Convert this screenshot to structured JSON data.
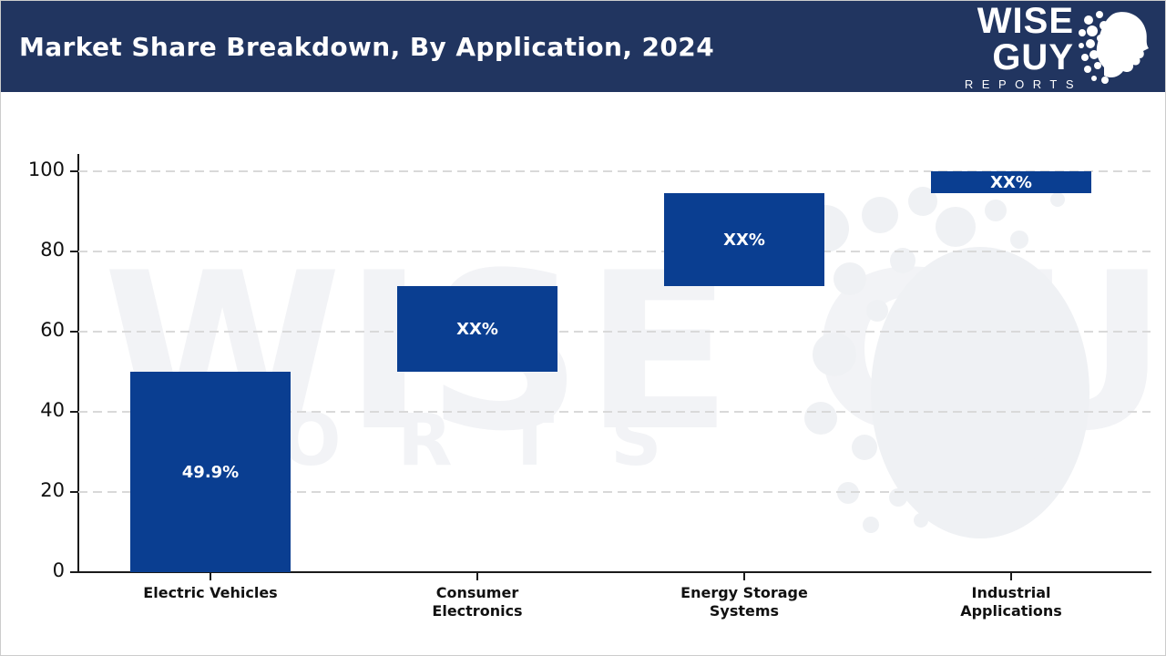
{
  "header": {
    "title": "Market Share Breakdown, By Application, 2024",
    "logo": {
      "line1": "WISE GUY",
      "line2": "REPORTS"
    }
  },
  "watermark": {
    "line1": "WISE GUY",
    "line2": "PORTS"
  },
  "chart_data": {
    "type": "bar",
    "subtype": "floating-segment market-share breakdown (waterfall style)",
    "title": "Market Share Breakdown, By Application, 2024",
    "categories": [
      "Electric Vehicles",
      "Consumer\nElectronics",
      "Energy Storage\nSystems",
      "Industrial\nApplications"
    ],
    "segments": [
      {
        "category": "Electric Vehicles",
        "start": 0,
        "end": 49.9,
        "label": "49.9%"
      },
      {
        "category": "Consumer Electronics",
        "start": 49.9,
        "end": 71.3,
        "label": "XX%"
      },
      {
        "category": "Energy Storage Systems",
        "start": 71.3,
        "end": 94.5,
        "label": "XX%"
      },
      {
        "category": "Industrial Applications",
        "start": 94.5,
        "end": 100,
        "label": "XX%"
      }
    ],
    "yticks": [
      0,
      20,
      40,
      60,
      80,
      100
    ],
    "ylim": [
      0,
      104
    ],
    "grid": "dashed horizontal gridlines",
    "legend": "none",
    "bar_color": "#0a3e91",
    "bar_label_color": "#ffffff"
  },
  "colors": {
    "header_bg": "#213560",
    "bar": "#0a3e91",
    "axis": "#1a1a1a",
    "grid": "#d9d9d9",
    "watermark": "#f2f3f6",
    "frame_border": "#cccccc"
  }
}
